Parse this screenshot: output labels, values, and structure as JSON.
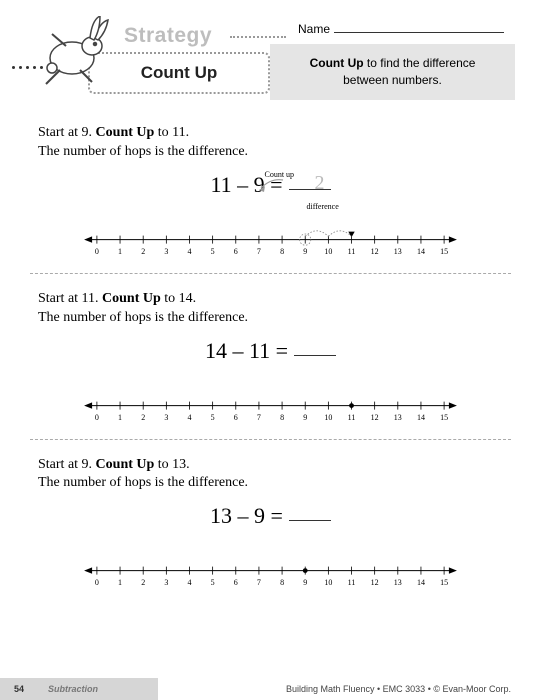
{
  "header": {
    "name_label": "Name",
    "strategy_label": "Strategy",
    "title": "Count Up",
    "tip_line1_bold": "Count Up",
    "tip_line1_rest": " to find the difference",
    "tip_line2": "between numbers."
  },
  "problems": [
    {
      "instr_start": "Start at 9. ",
      "instr_bold": "Count Up",
      "instr_end": " to 11.",
      "instr_line2": "The number of hops is the difference.",
      "equation_left": "11 – 9 =",
      "show_labels": true,
      "count_up_label": "Count up",
      "difference_label": "difference",
      "faint_answer": "2",
      "numberline": {
        "min": 0,
        "max": 15,
        "dotted_circle": 9,
        "mark": 11,
        "hops": [
          [
            9,
            10
          ],
          [
            10,
            11
          ]
        ]
      }
    },
    {
      "instr_start": "Start at 11. ",
      "instr_bold": "Count Up",
      "instr_end": " to 14.",
      "instr_line2": "The number of hops is the difference.",
      "equation_left": "14 – 11 =",
      "show_labels": false,
      "numberline": {
        "min": 0,
        "max": 15,
        "dot": 11
      }
    },
    {
      "instr_start": "Start at 9. ",
      "instr_bold": "Count Up",
      "instr_end": " to 13.",
      "instr_line2": "The number of hops is the difference.",
      "equation_left": "13 – 9 =",
      "show_labels": false,
      "numberline": {
        "min": 0,
        "max": 15,
        "dot": 9
      }
    }
  ],
  "footer": {
    "page_number": "54",
    "section": "Subtraction",
    "credit": "Building Math Fluency • EMC 3033 • © Evan-Moor Corp."
  },
  "style": {
    "tick_color": "#000000",
    "label_fontsize": 10
  }
}
